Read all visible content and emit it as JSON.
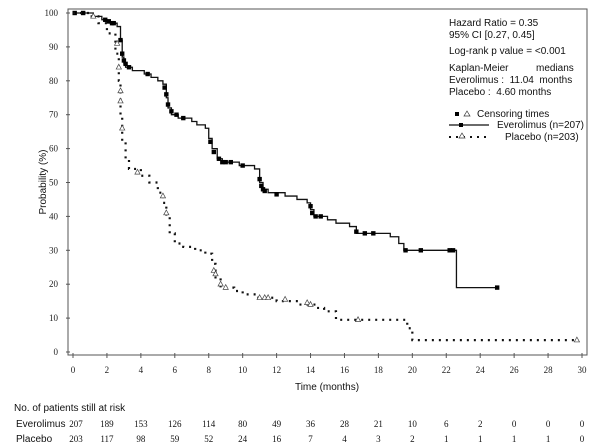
{
  "chart_data": {
    "type": "line",
    "subtype": "kaplan-meier",
    "xlabel": "Time (months)",
    "ylabel": "Probability (%)",
    "xlim": [
      0,
      30
    ],
    "ylim": [
      0,
      100
    ],
    "xticks": [
      0,
      2,
      4,
      6,
      8,
      10,
      12,
      14,
      16,
      18,
      20,
      22,
      24,
      26,
      28,
      30
    ],
    "yticks": [
      0,
      10,
      20,
      30,
      40,
      50,
      60,
      70,
      80,
      90,
      100
    ],
    "grid": false,
    "annotations": {
      "hazard_ratio": "Hazard Ratio = 0.35",
      "ci": "95% CI [0.27, 0.45]",
      "logrank": "Log-rank p value = <0.001",
      "km_label_a": "Kaplan-Meier",
      "km_label_b": "medians",
      "median_everolimus": "Everolimus :  11.04  months",
      "median_placebo": "Placebo :  4.60 months"
    },
    "legend": {
      "placement": "top-right",
      "censoring": "Censoring times",
      "entries": [
        "Everolimus (n=207)",
        "Placebo (n=203)"
      ]
    },
    "series": [
      {
        "name": "Everolimus (n=207)",
        "style": "solid",
        "censor_marker": "square",
        "steps": [
          [
            0,
            100
          ],
          [
            1.2,
            99
          ],
          [
            1.7,
            98
          ],
          [
            2.2,
            97
          ],
          [
            2.6,
            96
          ],
          [
            2.8,
            92
          ],
          [
            2.9,
            87
          ],
          [
            3.0,
            85
          ],
          [
            3.1,
            84
          ],
          [
            3.5,
            83
          ],
          [
            4.2,
            82
          ],
          [
            4.6,
            81
          ],
          [
            5.0,
            80
          ],
          [
            5.3,
            79
          ],
          [
            5.5,
            75
          ],
          [
            5.6,
            72
          ],
          [
            5.8,
            70
          ],
          [
            6.2,
            69
          ],
          [
            7.0,
            68
          ],
          [
            7.3,
            67
          ],
          [
            7.8,
            66
          ],
          [
            8.0,
            63
          ],
          [
            8.2,
            60
          ],
          [
            8.5,
            57
          ],
          [
            8.8,
            56
          ],
          [
            9.8,
            55
          ],
          [
            10.7,
            54
          ],
          [
            11.0,
            50
          ],
          [
            11.2,
            48
          ],
          [
            11.5,
            47
          ],
          [
            12.5,
            46
          ],
          [
            13.2,
            45
          ],
          [
            13.8,
            44
          ],
          [
            14.0,
            42
          ],
          [
            14.2,
            40
          ],
          [
            15.0,
            39
          ],
          [
            15.5,
            38
          ],
          [
            16.3,
            37
          ],
          [
            16.7,
            35
          ],
          [
            18.7,
            34
          ],
          [
            19.2,
            32
          ],
          [
            19.5,
            30
          ],
          [
            22.6,
            19
          ]
        ],
        "end": 25.0,
        "censored": [
          [
            0.1,
            100
          ],
          [
            0.6,
            100
          ],
          [
            1.9,
            98
          ],
          [
            2.1,
            97.5
          ],
          [
            2.3,
            97
          ],
          [
            2.4,
            97
          ],
          [
            2.8,
            92
          ],
          [
            2.9,
            88
          ],
          [
            3.0,
            86
          ],
          [
            3.1,
            85
          ],
          [
            3.3,
            84
          ],
          [
            4.4,
            82
          ],
          [
            5.4,
            78
          ],
          [
            5.5,
            76
          ],
          [
            5.6,
            73
          ],
          [
            5.8,
            71
          ],
          [
            6.1,
            70
          ],
          [
            6.5,
            69
          ],
          [
            8.1,
            62
          ],
          [
            8.3,
            59
          ],
          [
            8.6,
            57
          ],
          [
            8.8,
            56
          ],
          [
            9.0,
            56
          ],
          [
            9.3,
            56
          ],
          [
            10.0,
            55
          ],
          [
            11.0,
            51
          ],
          [
            11.1,
            49
          ],
          [
            11.2,
            48
          ],
          [
            11.3,
            47.5
          ],
          [
            12.0,
            46.5
          ],
          [
            14.0,
            43
          ],
          [
            14.1,
            41
          ],
          [
            14.3,
            40
          ],
          [
            14.6,
            40
          ],
          [
            16.7,
            35.5
          ],
          [
            17.2,
            35
          ],
          [
            17.7,
            35
          ],
          [
            19.6,
            30
          ],
          [
            20.5,
            30
          ],
          [
            22.2,
            30
          ],
          [
            22.4,
            30
          ],
          [
            25.0,
            19
          ]
        ]
      },
      {
        "name": "Placebo (n=203)",
        "style": "dotted",
        "censor_marker": "triangle",
        "steps": [
          [
            0,
            100
          ],
          [
            1.0,
            99
          ],
          [
            1.5,
            97
          ],
          [
            2.0,
            94
          ],
          [
            2.5,
            88
          ],
          [
            2.7,
            80
          ],
          [
            2.8,
            70
          ],
          [
            2.9,
            62
          ],
          [
            3.1,
            57
          ],
          [
            3.3,
            54
          ],
          [
            4.0,
            52
          ],
          [
            4.5,
            50
          ],
          [
            5.0,
            47
          ],
          [
            5.3,
            44
          ],
          [
            5.5,
            40
          ],
          [
            5.7,
            35
          ],
          [
            6.0,
            32
          ],
          [
            6.5,
            31
          ],
          [
            7.2,
            30
          ],
          [
            7.8,
            29
          ],
          [
            8.2,
            26
          ],
          [
            8.4,
            22
          ],
          [
            8.7,
            19
          ],
          [
            9.5,
            18
          ],
          [
            10.0,
            17
          ],
          [
            10.8,
            16
          ],
          [
            12.0,
            15
          ],
          [
            13.3,
            14
          ],
          [
            14.3,
            13
          ],
          [
            14.8,
            12
          ],
          [
            15.5,
            9.5
          ],
          [
            19.4,
            9.5
          ],
          [
            19.7,
            7
          ],
          [
            20.0,
            3.5
          ]
        ],
        "end": 29.7,
        "censored": [
          [
            1.2,
            99
          ],
          [
            2.6,
            91
          ],
          [
            2.7,
            84
          ],
          [
            2.8,
            77
          ],
          [
            2.8,
            74
          ],
          [
            2.9,
            66
          ],
          [
            3.8,
            53
          ],
          [
            5.3,
            46
          ],
          [
            5.5,
            41
          ],
          [
            8.3,
            24
          ],
          [
            8.4,
            23
          ],
          [
            8.7,
            20
          ],
          [
            9.0,
            19
          ],
          [
            11.0,
            16
          ],
          [
            11.3,
            16
          ],
          [
            11.5,
            16
          ],
          [
            12.5,
            15.5
          ],
          [
            13.8,
            14.5
          ],
          [
            14.0,
            14
          ],
          [
            16.8,
            9.5
          ],
          [
            29.7,
            3.5
          ]
        ]
      }
    ],
    "risk_table": {
      "title": "No. of patients still at risk",
      "times": [
        0,
        2,
        4,
        6,
        8,
        10,
        12,
        14,
        16,
        18,
        20,
        22,
        24,
        26,
        28,
        30
      ],
      "rows": [
        {
          "label": "Everolimus",
          "values": [
            "207",
            "189",
            "153",
            "126",
            "114",
            "80",
            "49",
            "36",
            "28",
            "21",
            "10",
            "6",
            "2",
            "0",
            "0",
            "0"
          ]
        },
        {
          "label": "Placebo",
          "values": [
            "203",
            "117",
            "98",
            "59",
            "52",
            "24",
            "16",
            "7",
            "4",
            "3",
            "2",
            "1",
            "1",
            "1",
            "1",
            "0"
          ]
        }
      ]
    }
  }
}
